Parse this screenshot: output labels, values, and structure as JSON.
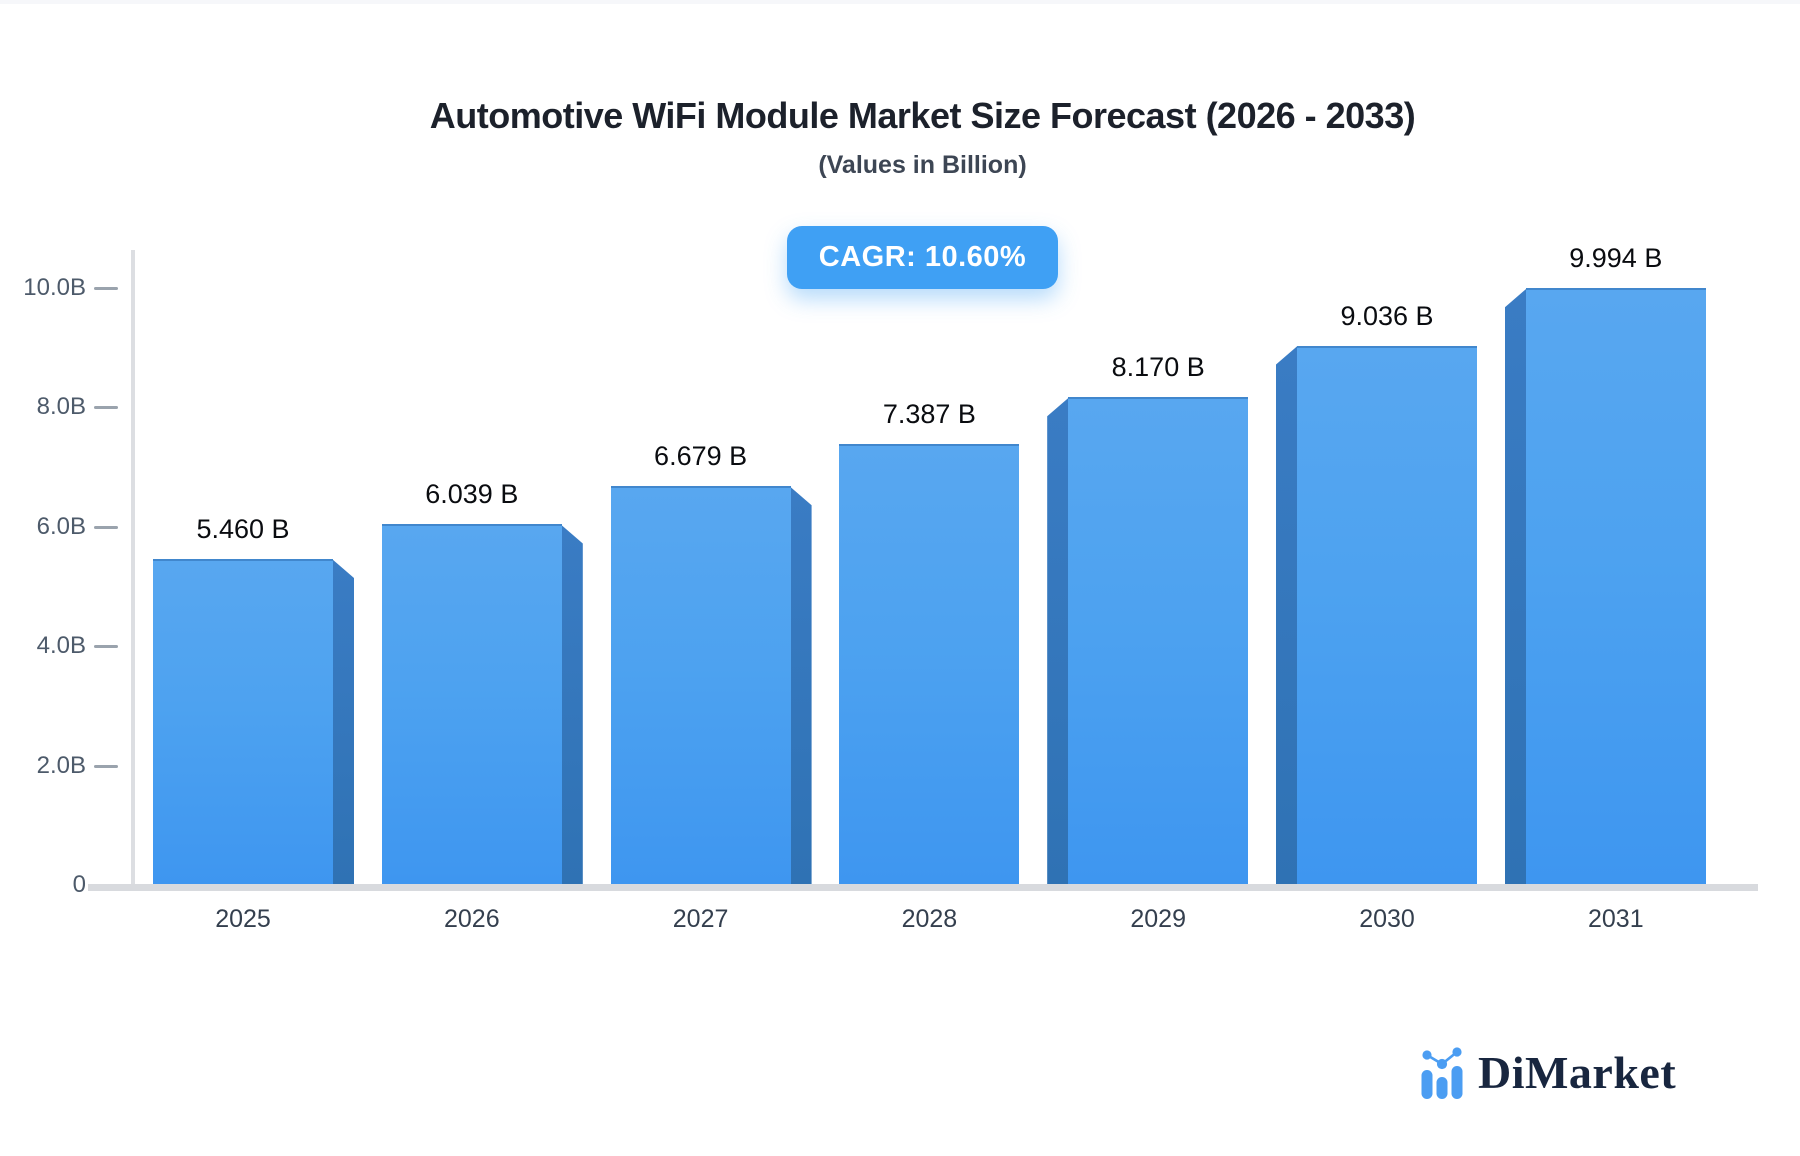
{
  "header": {
    "title": "Automotive WiFi Module Market Size Forecast (2026 - 2033)",
    "subtitle": "(Values in Billion)",
    "cagr_badge": "CAGR: 10.60%"
  },
  "footer": {
    "brand": "DiMarket"
  },
  "colors": {
    "accent_blue": "#3fa0f4",
    "bar_face_top": "#58a7f0",
    "bar_face_bottom": "#3e96f0",
    "bar_top_edge": "#4187cd",
    "bar_side_dark": "#2f72b4",
    "axis_gray": "#d8dade",
    "tick_gray": "#9aa3ad",
    "y_label_color": "#4d5a6a",
    "x_label_color": "#343f4e",
    "value_label_color": "#0a0c10",
    "logo_navy": "#18263f",
    "logo_blue": "#4b9df2"
  },
  "chart_data": {
    "type": "bar",
    "style": "3d-perspective-bars",
    "title": "Automotive WiFi Module Market Size Forecast (2026 - 2033)",
    "subtitle": "(Values in Billion)",
    "annotation": "CAGR: 10.60%",
    "categories": [
      "2025",
      "2026",
      "2027",
      "2028",
      "2029",
      "2030",
      "2031"
    ],
    "values": [
      5.46,
      6.039,
      6.679,
      7.387,
      8.17,
      9.036,
      9.994
    ],
    "value_labels": [
      "5.460 B",
      "6.039 B",
      "6.679 B",
      "7.387 B",
      "8.170 B",
      "9.036 B",
      "9.994 B"
    ],
    "xlabel": "",
    "ylabel": "",
    "ylim": [
      0,
      10
    ],
    "y_ticks": [
      "0",
      "2.0B",
      "4.0B",
      "6.0B",
      "8.0B",
      "10.0B"
    ],
    "y_tick_values": [
      0,
      2,
      4,
      6,
      8,
      10
    ],
    "grid": false,
    "legend": false
  }
}
